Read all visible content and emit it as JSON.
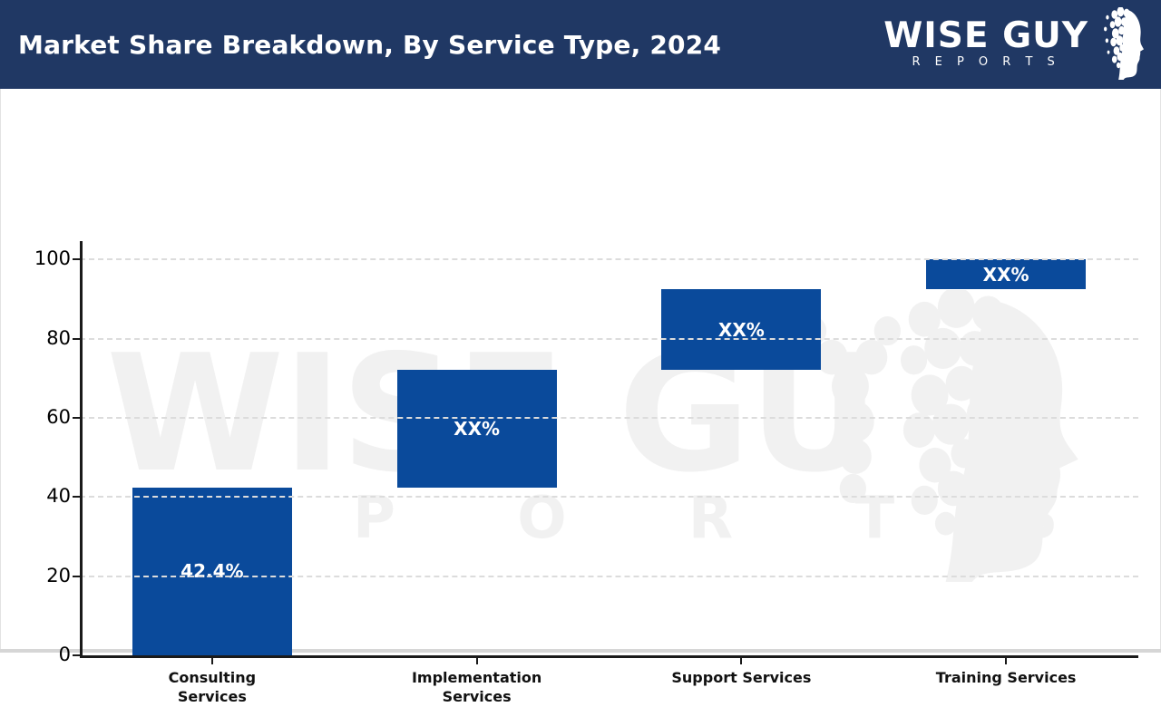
{
  "header": {
    "title": "Market Share Breakdown, By Service Type, 2024",
    "logo": {
      "wordmark": "WISE GUY",
      "subtext": "R E P O R T S"
    }
  },
  "watermark": {
    "wordmark": "WISE GU",
    "subtext": "P O R T S"
  },
  "chart_data": {
    "type": "bar",
    "subtype": "waterfall",
    "title": "Market Share Breakdown, By Service Type, 2024",
    "categories": [
      [
        "Consulting",
        "Services"
      ],
      [
        "Implementation",
        "Services"
      ],
      [
        "Support Services"
      ],
      [
        "Training Services"
      ]
    ],
    "series": [
      {
        "name": "Consulting Services",
        "start": 0,
        "end": 42.4,
        "label": "42.4%"
      },
      {
        "name": "Implementation Services",
        "start": 42.4,
        "end": 72.0,
        "label": "XX%"
      },
      {
        "name": "Support Services",
        "start": 72.0,
        "end": 92.5,
        "label": "XX%"
      },
      {
        "name": "Training Services",
        "start": 92.5,
        "end": 100.0,
        "label": "XX%"
      }
    ],
    "yticks": [
      0,
      20,
      40,
      60,
      80,
      100
    ],
    "ylim": [
      0,
      104.5
    ],
    "xlabel": "",
    "ylabel": "",
    "grid": "horizontal-dashed",
    "legend_position": "none",
    "colors": {
      "bar": "#0a4a9b",
      "header_bg": "#203864",
      "grid_line": "#dcdcdc",
      "axis": "#1a1a1a",
      "bar_label": "#ffffff",
      "bottom_strip": "#d6d6d6"
    }
  }
}
